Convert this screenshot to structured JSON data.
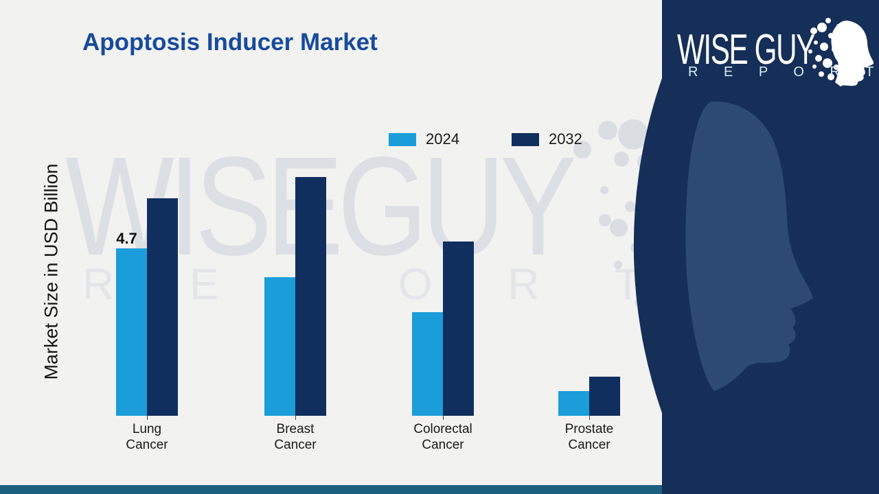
{
  "title": "Apoptosis Inducer Market",
  "watermark": {
    "line1": "WISEGUY",
    "line2": "R E P O R T S"
  },
  "logo": {
    "line1": "WISE GUY",
    "line2": "R E P O R T S"
  },
  "colors": {
    "series_2024": "#1a9dd9",
    "series_2032": "#112f5e",
    "panel_navy": "#152f58",
    "face_silhouette": "#2c4a72",
    "bottom_bar_teal": "#1b607f",
    "title_blue": "#174b9b",
    "watermark_gray": "#dcdfe4",
    "background": "#f2f2f1"
  },
  "chart_data": {
    "type": "bar",
    "title": "Apoptosis Inducer Market",
    "ylabel": "Market Size in USD Billion",
    "xlabel": "",
    "grid": false,
    "legend_position": "top",
    "categories": [
      "Lung Cancer",
      "Breast Cancer",
      "Colorectal Cancer",
      "Prostate Cancer"
    ],
    "series": [
      {
        "name": "2024",
        "color": "#1a9dd9",
        "values": [
          4.7,
          3.9,
          2.9,
          0.7
        ]
      },
      {
        "name": "2032",
        "color": "#112f5e",
        "values": [
          6.1,
          6.7,
          4.9,
          1.1
        ]
      }
    ],
    "annotations": [
      {
        "series": "2024",
        "category": "Lung Cancer",
        "text": "4.7"
      }
    ],
    "ylim": [
      0,
      7.5
    ]
  }
}
